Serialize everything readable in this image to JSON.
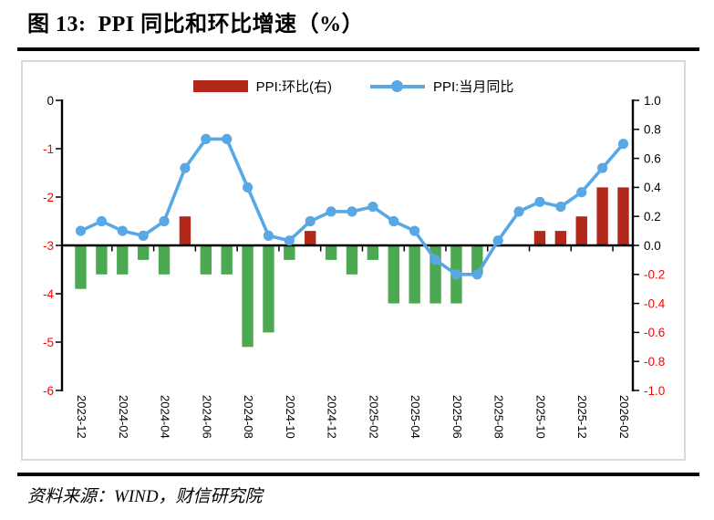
{
  "page": {
    "title": "图 13:  PPI 同比和环比增速（%）",
    "source": "资料来源：WIND，财信研究院"
  },
  "legend": {
    "mom": {
      "label": "PPI:环比(右)",
      "swatch_color": "#B2291B"
    },
    "yoy": {
      "label": "PPI:当月同比",
      "line_color": "#58A8E6"
    }
  },
  "chart_data": {
    "type": "bar+line combo",
    "title": "PPI 同比和环比增速（%）",
    "x": [
      "2023-12",
      "2024-01",
      "2024-02",
      "2024-03",
      "2024-04",
      "2024-05",
      "2024-06",
      "2024-07",
      "2024-08",
      "2024-09",
      "2024-10",
      "2024-11",
      "2024-12",
      "2025-01",
      "2025-02",
      "2025-03",
      "2025-04",
      "2025-05",
      "2025-06",
      "2025-07",
      "2025-08",
      "2025-09",
      "2025-10",
      "2025-11",
      "2025-12",
      "2026-01",
      "2026-02"
    ],
    "x_tick_labels": [
      "2023-12",
      "2024-02",
      "2024-04",
      "2024-06",
      "2024-08",
      "2024-10",
      "2024-12",
      "2025-02",
      "2025-04",
      "2025-06",
      "2025-08",
      "2025-10",
      "2025-12",
      "2026-02"
    ],
    "series": [
      {
        "name": "PPI:环比(右)",
        "type": "bar",
        "axis": "right",
        "color_positive": "#B2291B",
        "color_negative": "#4DA852",
        "values": [
          -0.3,
          -0.2,
          -0.2,
          -0.1,
          -0.2,
          0.2,
          -0.2,
          -0.2,
          -0.7,
          -0.6,
          -0.1,
          0.1,
          -0.1,
          -0.2,
          -0.1,
          -0.4,
          -0.4,
          -0.4,
          -0.4,
          -0.2,
          0.0,
          0.0,
          0.1,
          0.1,
          0.2,
          0.4,
          0.4
        ]
      },
      {
        "name": "PPI:当月同比",
        "type": "line",
        "axis": "left",
        "color": "#58A8E6",
        "values": [
          -2.7,
          -2.5,
          -2.7,
          -2.8,
          -2.5,
          -1.4,
          -0.8,
          -0.8,
          -1.8,
          -2.8,
          -2.9,
          -2.5,
          -2.3,
          -2.3,
          -2.2,
          -2.5,
          -2.7,
          -3.3,
          -3.6,
          -3.6,
          -2.9,
          -2.3,
          -2.1,
          -2.2,
          -1.9,
          -1.4,
          -0.9
        ]
      }
    ],
    "left_axis": {
      "labels": [
        "0",
        "-1",
        "-2",
        "-3",
        "-4",
        "-5",
        "-6"
      ],
      "range": [
        0,
        -6
      ]
    },
    "right_axis": {
      "labels": [
        "1.0",
        "0.8",
        "0.6",
        "0.4",
        "0.2",
        "0.0",
        "-0.2",
        "-0.4",
        "-0.6",
        "-0.8",
        "-1.0"
      ],
      "range": [
        1.0,
        -1.0
      ]
    },
    "grid": false,
    "legend_position": "top",
    "negative_label_color": "#FF0000",
    "positive_label_color": "#000000",
    "axis_color": "#000000"
  }
}
